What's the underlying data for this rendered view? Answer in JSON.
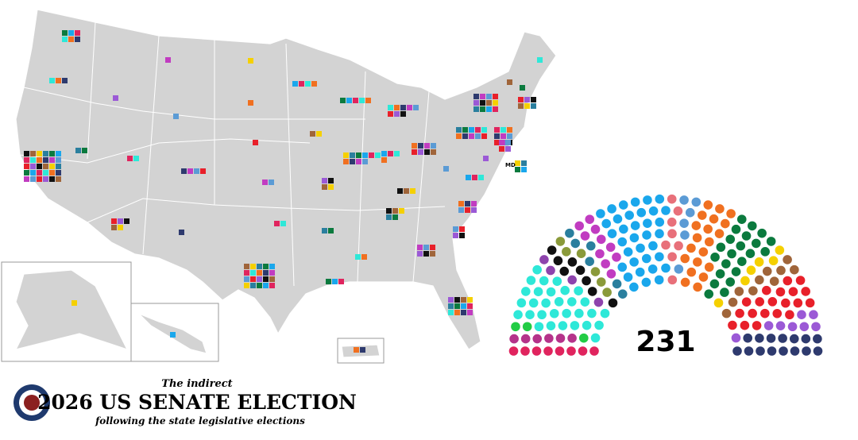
{
  "header": {
    "kicker": "The indirect",
    "title": "2026 US SENATE ELECTION",
    "subtitle": "following the state legislative elections"
  },
  "map": {
    "md_label": "MD"
  },
  "chart_data": {
    "type": "parliament",
    "total": 231,
    "parties": [
      {
        "color": "#e0245e",
        "seats": 8
      },
      {
        "color": "#b5338a",
        "seats": 6
      },
      {
        "color": "#22cc44",
        "seats": 3
      },
      {
        "color": "#2ee8d8",
        "seats": 30
      },
      {
        "color": "#8e44ad",
        "seats": 4
      },
      {
        "color": "#111111",
        "seats": 8
      },
      {
        "color": "#8a9a3a",
        "seats": 6
      },
      {
        "color": "#2a7f9e",
        "seats": 6
      },
      {
        "color": "#c13cc1",
        "seats": 10
      },
      {
        "color": "#1aa7ec",
        "seats": 35
      },
      {
        "color": "#e8707a",
        "seats": 8
      },
      {
        "color": "#5b9bd5",
        "seats": 6
      },
      {
        "color": "#f07020",
        "seats": 20
      },
      {
        "color": "#0b7a3e",
        "seats": 22
      },
      {
        "color": "#f5d000",
        "seats": 6
      },
      {
        "color": "#a0653a",
        "seats": 10
      },
      {
        "color": "#e8202a",
        "seats": 20
      },
      {
        "color": "#9b59d6",
        "seats": 8
      },
      {
        "color": "#2e3a6e",
        "seats": 15
      }
    ]
  }
}
